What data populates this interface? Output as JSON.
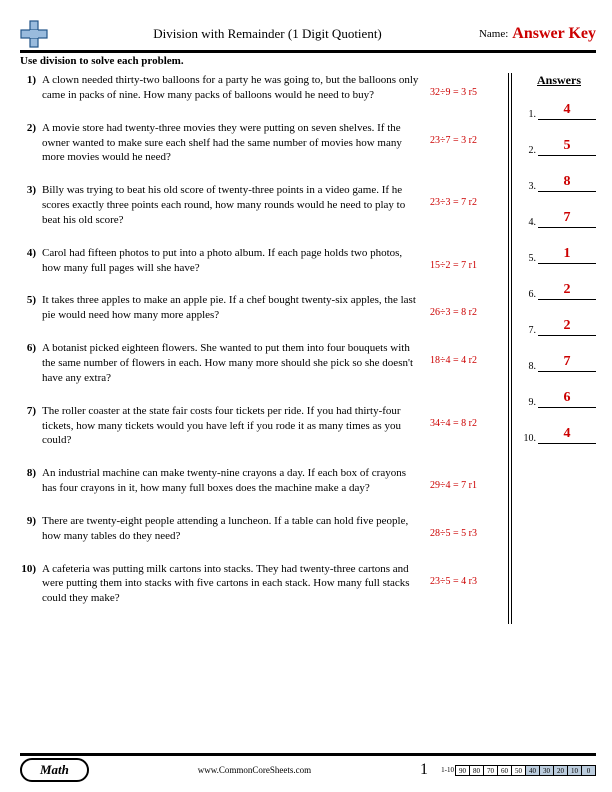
{
  "header": {
    "title": "Division with Remainder (1 Digit Quotient)",
    "name_label": "Name:",
    "answer_key": "Answer Key"
  },
  "instruction": "Use division to solve each problem.",
  "answers_heading": "Answers",
  "problems": [
    {
      "num": "1)",
      "text": "A clown needed thirty-two balloons for a party he was going to, but the balloons only came in packs of nine. How many packs of balloons would he need to buy?",
      "calc": "32÷9 = 3 r5"
    },
    {
      "num": "2)",
      "text": "A movie store had twenty-three movies they were putting on seven shelves. If the owner wanted to make sure each shelf had the same number of movies how many more movies would he need?",
      "calc": "23÷7 = 3 r2"
    },
    {
      "num": "3)",
      "text": "Billy was trying to beat his old score of twenty-three points in a video game. If he scores exactly three points each round, how many rounds would he need to play to beat his old score?",
      "calc": "23÷3 = 7 r2"
    },
    {
      "num": "4)",
      "text": "Carol had fifteen photos to put into a photo album. If each page holds two photos, how many full pages will she have?",
      "calc": "15÷2 = 7 r1"
    },
    {
      "num": "5)",
      "text": "It takes three apples to make an apple pie. If a chef bought twenty-six apples, the last pie would need how many more apples?",
      "calc": "26÷3 = 8 r2"
    },
    {
      "num": "6)",
      "text": "A botanist picked eighteen flowers. She wanted to put them into four bouquets with the same number of flowers in each. How many more should she pick so she doesn't have any extra?",
      "calc": "18÷4 = 4 r2"
    },
    {
      "num": "7)",
      "text": "The roller coaster at the state fair costs four tickets per ride. If you had thirty-four tickets, how many tickets would you have left if you rode it as many times as you could?",
      "calc": "34÷4 = 8 r2"
    },
    {
      "num": "8)",
      "text": "An industrial machine can make twenty-nine crayons a day. If each box of crayons has four crayons in it, how many full boxes does the machine make a day?",
      "calc": "29÷4 = 7 r1"
    },
    {
      "num": "9)",
      "text": "There are twenty-eight people attending a luncheon. If a table can hold five people, how many tables do they need?",
      "calc": "28÷5 = 5 r3"
    },
    {
      "num": "10)",
      "text": "A cafeteria was putting milk cartons into stacks. They had twenty-three cartons and were putting them into stacks with five cartons in each stack. How many full stacks could they make?",
      "calc": "23÷5 = 4 r3"
    }
  ],
  "answers": [
    {
      "n": "1.",
      "v": "4"
    },
    {
      "n": "2.",
      "v": "5"
    },
    {
      "n": "3.",
      "v": "8"
    },
    {
      "n": "4.",
      "v": "7"
    },
    {
      "n": "5.",
      "v": "1"
    },
    {
      "n": "6.",
      "v": "2"
    },
    {
      "n": "7.",
      "v": "2"
    },
    {
      "n": "8.",
      "v": "7"
    },
    {
      "n": "9.",
      "v": "6"
    },
    {
      "n": "10.",
      "v": "4"
    }
  ],
  "footer": {
    "subject": "Math",
    "site": "www.CommonCoreSheets.com",
    "page": "1",
    "score_label": "1-10",
    "scores": [
      "90",
      "80",
      "70",
      "60",
      "50",
      "40",
      "30",
      "20",
      "10",
      "0"
    ],
    "shaded_from": 5
  },
  "colors": {
    "accent": "#c00",
    "text": "#000",
    "shade": "#bcd"
  }
}
